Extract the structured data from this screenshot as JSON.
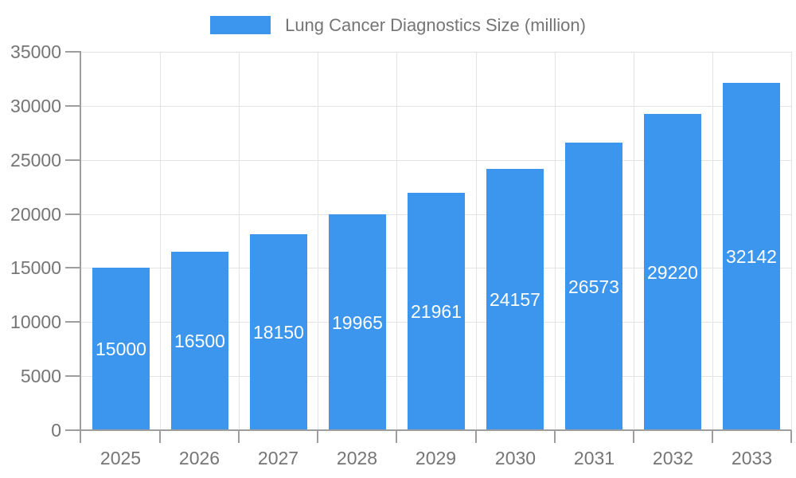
{
  "chart_data": {
    "type": "bar",
    "title": "Lung Cancer Diagnostics Size (million)",
    "legend": {
      "label": "Lung Cancer Diagnostics Size (million)",
      "position": "top-center"
    },
    "categories": [
      "2025",
      "2026",
      "2027",
      "2028",
      "2029",
      "2030",
      "2031",
      "2032",
      "2033"
    ],
    "series": [
      {
        "name": "Lung Cancer Diagnostics Size (million)",
        "values": [
          15000,
          16500,
          18150,
          19965,
          21961,
          24157,
          26573,
          29220,
          32142
        ]
      }
    ],
    "bar_value_labels": [
      "15000",
      "16500",
      "18150",
      "19965",
      "21961",
      "24157",
      "26573",
      "29220",
      "32142"
    ],
    "xlabel": "",
    "ylabel": "",
    "ylim": [
      0,
      35000
    ],
    "ytick_step": 5000,
    "ytick_labels": [
      "0",
      "5000",
      "10000",
      "15000",
      "20000",
      "25000",
      "30000",
      "35000"
    ],
    "grid": true,
    "colors": {
      "bar": "#3D96EE",
      "axis": "#9E9E9E",
      "grid": "#E3E3E3",
      "tick_text": "#757575",
      "legend_text": "#757575",
      "bar_label_text": "#FFFFFF",
      "background": "#FFFFFF"
    }
  }
}
